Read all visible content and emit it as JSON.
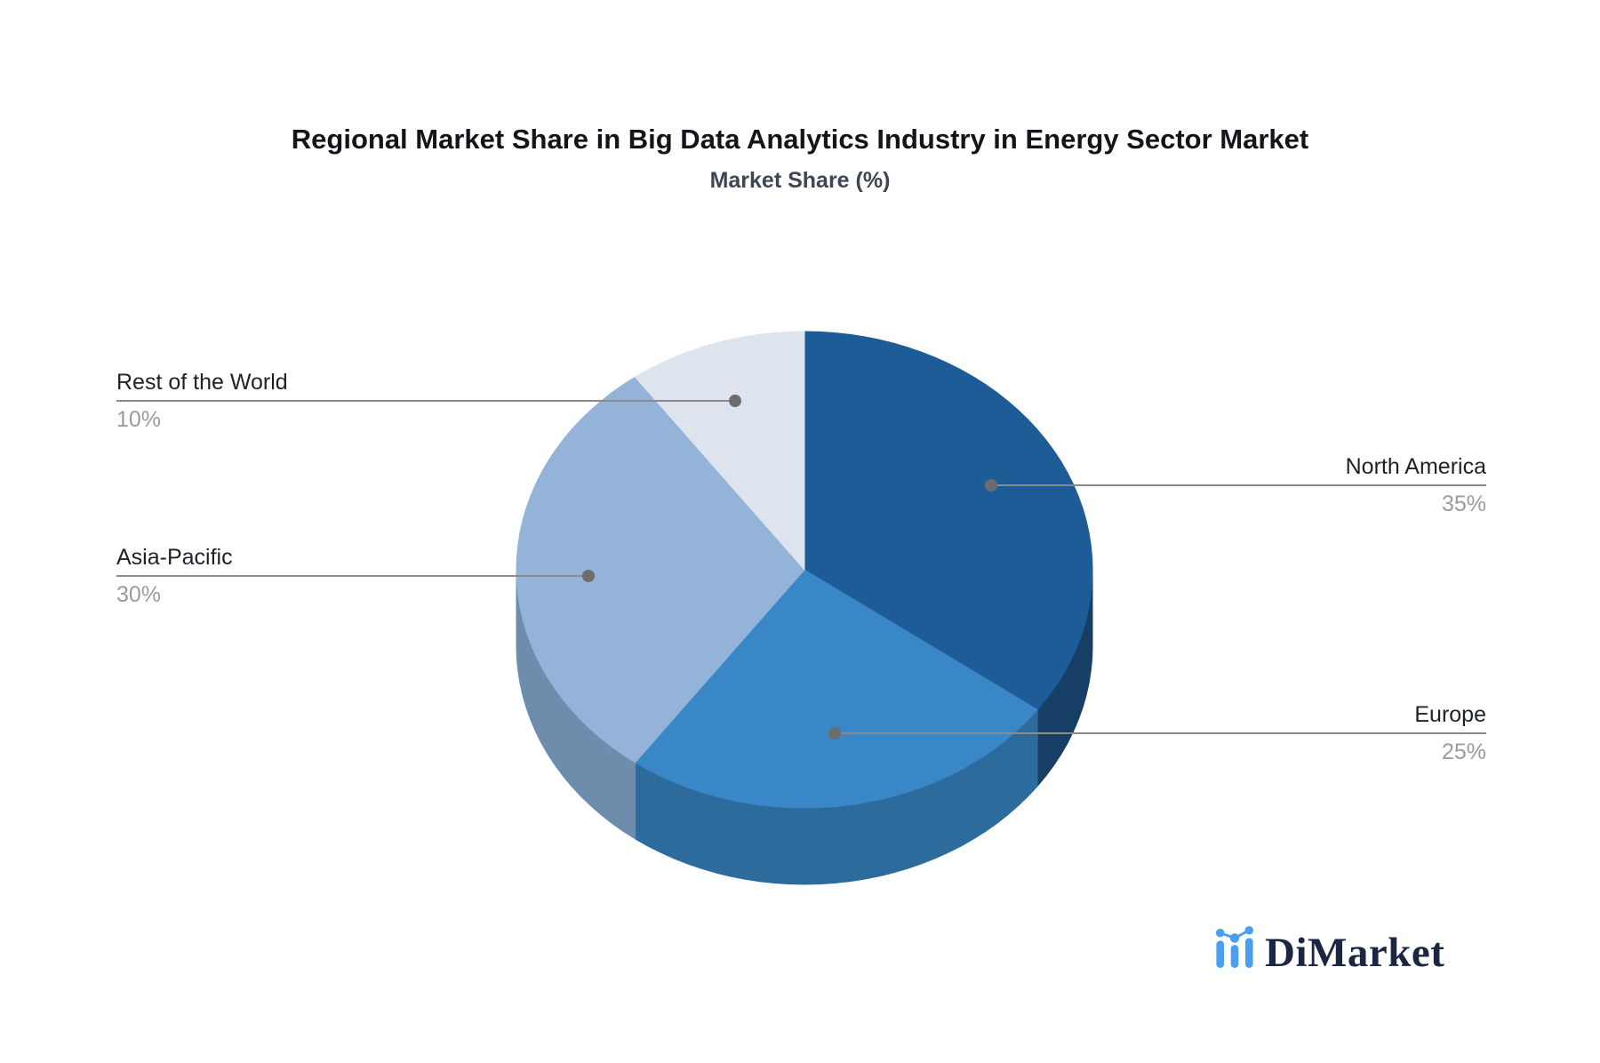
{
  "chart_data": {
    "type": "pie",
    "title": "Regional Market Share in Big Data Analytics Industry in Energy Sector Market",
    "subtitle": "Market Share (%)",
    "unit": "%",
    "effect": "3d",
    "start_angle_deg": 0,
    "direction": "clockwise",
    "legend": "none",
    "slices": [
      {
        "label": "North America",
        "value": 35,
        "pct_label": "35%",
        "color": "#1e5c97",
        "side_color": "#173f66",
        "label_side": "right"
      },
      {
        "label": "Europe",
        "value": 25,
        "pct_label": "25%",
        "color": "#3a87c8",
        "side_color": "#2e6b9d",
        "label_side": "right"
      },
      {
        "label": "Asia-Pacific",
        "value": 30,
        "pct_label": "30%",
        "color": "#93b4d8",
        "side_color": "#6e8dac",
        "label_side": "left"
      },
      {
        "label": "Rest of the World",
        "value": 10,
        "pct_label": "10%",
        "color": "#dee4ee",
        "side_color": "#c2cbd9",
        "label_side": "left"
      }
    ],
    "label_color": "#1e2228",
    "pct_color": "#9b9b9b",
    "connector_color": "#8b8b8b"
  },
  "branding": {
    "logo_text": "DiMarket",
    "logo_icon": "bar-chart-icon",
    "logo_icon_color": "#4b9ff2",
    "logo_text_color": "#1b2741"
  }
}
